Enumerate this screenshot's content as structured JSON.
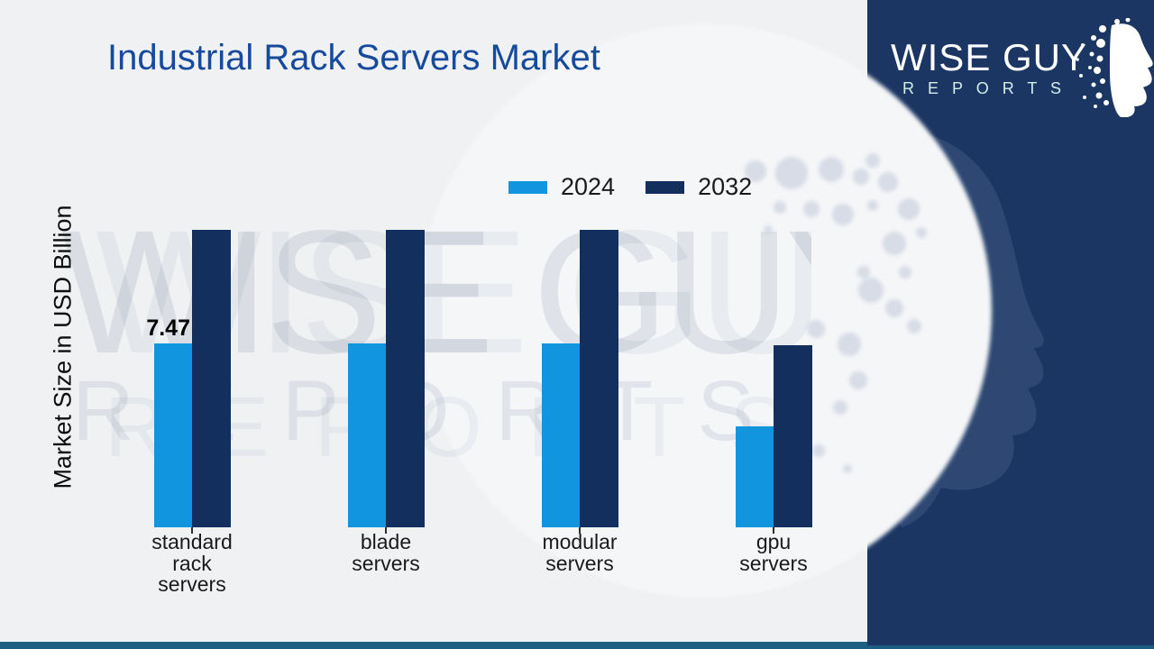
{
  "header": {
    "title": "Industrial Rack Servers Market"
  },
  "logo": {
    "brand_line1": "WISE GUY",
    "brand_line2": "R E P O R T S",
    "head_icon": "dotted-head-profile-icon"
  },
  "watermark": {
    "line1": "WISE GUY",
    "line2": "R E P O R T S"
  },
  "chart_data": {
    "type": "bar",
    "title": "Industrial Rack Servers Market",
    "xlabel": "",
    "ylabel": "Market Size in USD Billion",
    "categories": [
      "standard rack servers",
      "blade servers",
      "modular servers",
      "gpu servers"
    ],
    "categories_lines": [
      [
        "standard",
        "rack",
        "servers"
      ],
      [
        "blade",
        "servers"
      ],
      [
        "modular",
        "servers"
      ],
      [
        "gpu",
        "servers"
      ]
    ],
    "series": [
      {
        "name": "2024",
        "color": "#1095de",
        "values": [
          7.47,
          7.47,
          7.47,
          4.1
        ]
      },
      {
        "name": "2032",
        "color": "#132f5d",
        "values": [
          12.1,
          12.1,
          12.1,
          7.4
        ]
      }
    ],
    "data_labels": [
      {
        "series_index": 0,
        "category_index": 0,
        "text": "7.47"
      }
    ],
    "ylim": [
      0,
      13.5
    ],
    "grid": false,
    "legend_position": "top-center"
  },
  "colors": {
    "title_text": "#164a9d",
    "bar_2024": "#1095de",
    "bar_2032": "#132f5d",
    "brand_panel": "#1b3663",
    "footer_bar": "#1d5f82",
    "face_watermark": "#2e4873",
    "background": "#f0f1f3",
    "circle": "#f5f6f8"
  }
}
